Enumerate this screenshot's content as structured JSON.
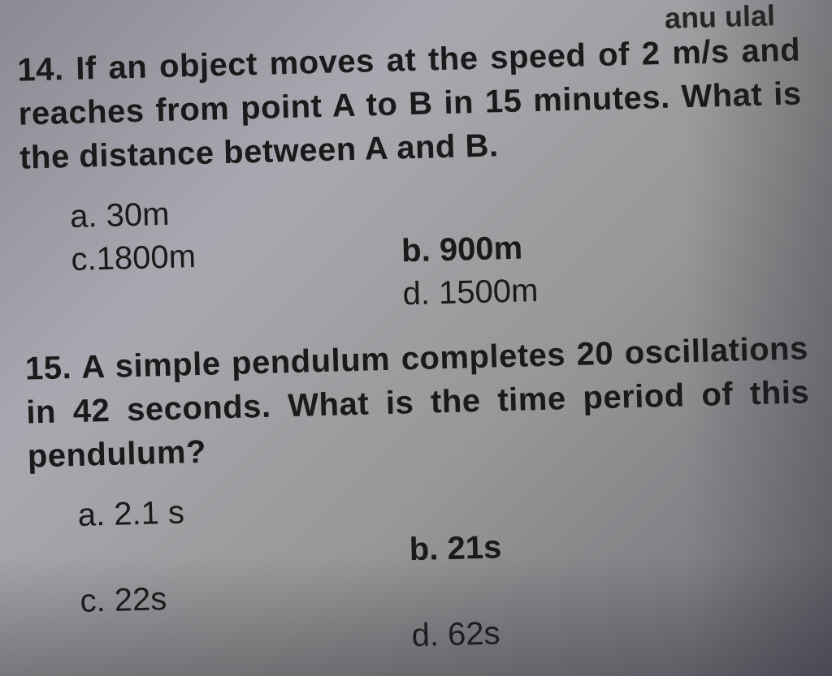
{
  "top_fragment": "anu ulal",
  "q14": {
    "number": "14.",
    "text": "If an object moves at the speed of 2 m/s and reaches from point A to B in 15 minutes. What is the distance between A and B.",
    "options": {
      "a": {
        "label": "a.",
        "value": "30m"
      },
      "b": {
        "label": "b.",
        "value": "900m"
      },
      "c": {
        "label": "c.",
        "value": "1800m"
      },
      "d": {
        "label": "d.",
        "value": "1500m"
      }
    }
  },
  "q15": {
    "number": "15.",
    "text": "A simple pendulum completes 20 oscillations in 42 seconds. What is the time period of this pendulum?",
    "options": {
      "a": {
        "label": "a.",
        "value": "2.1 s"
      },
      "b": {
        "label": "b.",
        "value": "21s"
      },
      "c": {
        "label": "c.",
        "value": "22s"
      },
      "d": {
        "label": "d.",
        "value": "62s"
      }
    }
  }
}
